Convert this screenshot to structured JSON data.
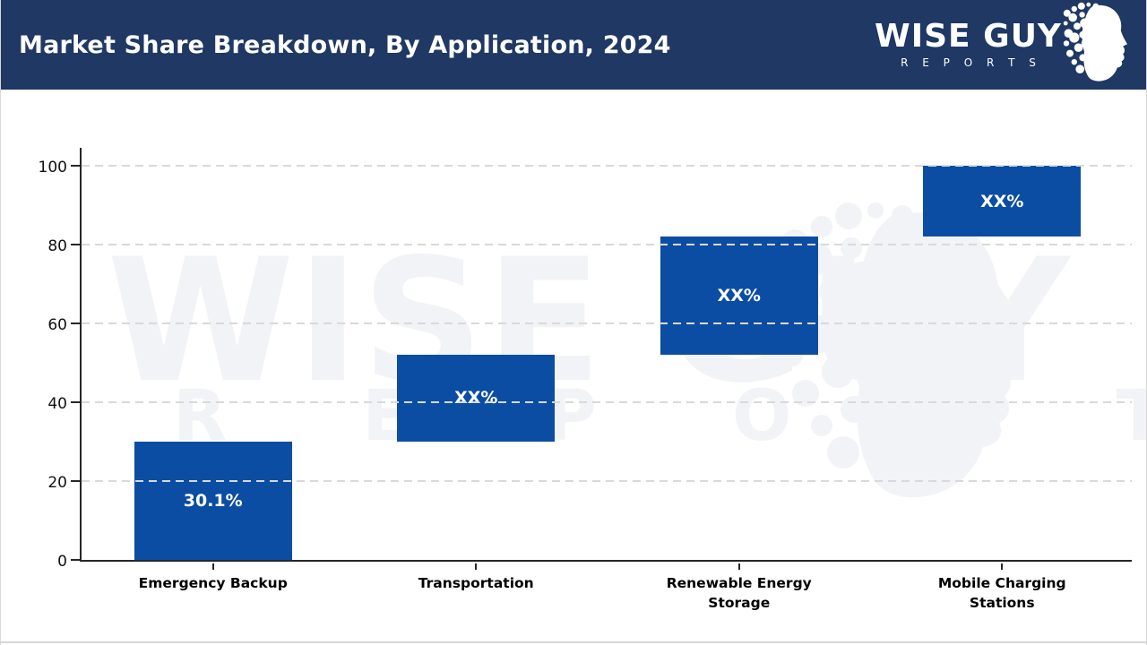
{
  "header": {
    "title": "Market Share Breakdown, By Application, 2024",
    "logo": {
      "name_line": "WISE GUY",
      "reports_line": "R E P O R T S"
    }
  },
  "watermark": {
    "name_line": "WISE GUY",
    "reports_line": "R E P O R T S"
  },
  "chart_data": {
    "type": "bar",
    "variant": "waterfall",
    "title": "Market Share Breakdown, By Application, 2024",
    "xlabel": "",
    "ylabel": "",
    "ylim": [
      0,
      100
    ],
    "yticks": [
      0,
      20,
      40,
      60,
      80,
      100
    ],
    "grid": "horizontal-dashed",
    "legend_position": "none",
    "bar_color": "#0b4da2",
    "value_label_color": "#ffffff",
    "categories": [
      "Emergency Backup",
      "Transportation",
      "Renewable Energy Storage",
      "Mobile Charging Stations"
    ],
    "segments": [
      {
        "category": "Emergency Backup",
        "start": 0,
        "end": 30.1,
        "value_label": "30.1%"
      },
      {
        "category": "Transportation",
        "start": 30.1,
        "end": 52.1,
        "value_label": "XX%"
      },
      {
        "category": "Renewable Energy Storage",
        "start": 52.1,
        "end": 82.0,
        "value_label": "XX%"
      },
      {
        "category": "Mobile Charging Stations",
        "start": 82.0,
        "end": 100.0,
        "value_label": "XX%"
      }
    ]
  }
}
